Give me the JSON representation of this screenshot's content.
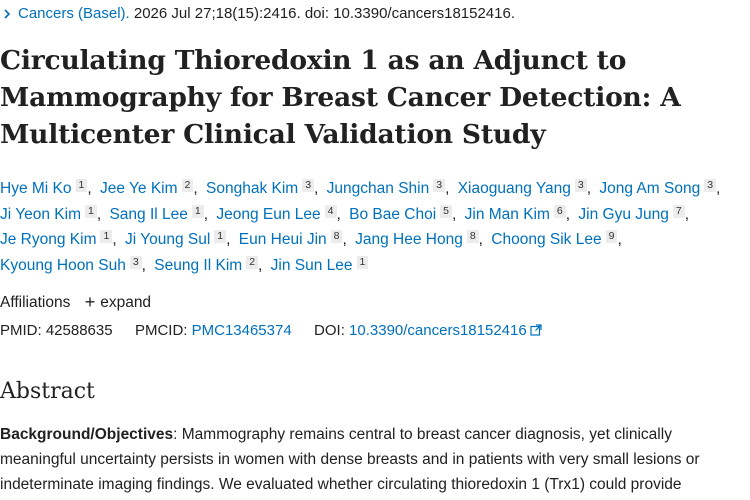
{
  "citation": {
    "journal": "Cancers (Basel).",
    "details": "2026 Jul 27;18(15):2416. doi: 10.3390/cancers18152416."
  },
  "title": "Circulating Thioredoxin 1 as an Adjunct to Mammography for Breast Cancer Detection: A Multicenter Clinical Validation Study",
  "authors": [
    {
      "name": "Hye Mi Ko",
      "aff": "1"
    },
    {
      "name": "Jee Ye Kim",
      "aff": "2"
    },
    {
      "name": "Songhak Kim",
      "aff": "3"
    },
    {
      "name": "Jungchan Shin",
      "aff": "3"
    },
    {
      "name": "Xiaoguang Yang",
      "aff": "3"
    },
    {
      "name": "Jong Am Song",
      "aff": "3"
    },
    {
      "name": "Ji Yeon Kim",
      "aff": "1"
    },
    {
      "name": "Sang Il Lee",
      "aff": "1"
    },
    {
      "name": "Jeong Eun Lee",
      "aff": "4"
    },
    {
      "name": "Bo Bae Choi",
      "aff": "5"
    },
    {
      "name": "Jin Man Kim",
      "aff": "6"
    },
    {
      "name": "Jin Gyu Jung",
      "aff": "7"
    },
    {
      "name": "Je Ryong Kim",
      "aff": "1"
    },
    {
      "name": "Ji Young Sul",
      "aff": "1"
    },
    {
      "name": "Eun Heui Jin",
      "aff": "8"
    },
    {
      "name": "Jang Hee Hong",
      "aff": "8"
    },
    {
      "name": "Choong Sik Lee",
      "aff": "9"
    },
    {
      "name": "Kyoung Hoon Suh",
      "aff": "3"
    },
    {
      "name": "Seung Il Kim",
      "aff": "2"
    },
    {
      "name": "Jin Sun Lee",
      "aff": "1"
    }
  ],
  "affiliations": {
    "label": "Affiliations",
    "expand_symbol": "+",
    "expand_label": "expand"
  },
  "identifiers": {
    "pmid_label": "PMID:",
    "pmid": "42588635",
    "pmcid_label": "PMCID:",
    "pmcid": "PMC13465374",
    "doi_label": "DOI:",
    "doi": "10.3390/cancers18152416"
  },
  "abstract": {
    "heading": "Abstract",
    "lead_label": "Background/Objectives",
    "lead_punct": ":",
    "text": " Mammography remains central to breast cancer diagnosis, yet clinically meaningful uncertainty persists in women with dense breasts and in patients with very small lesions or indeterminate imaging findings. We evaluated whether circulating thioredoxin 1 (Trx1) could provide"
  },
  "colors": {
    "link": "#0071bc",
    "text": "#212121",
    "sup_bg": "#ececec"
  },
  "icons": {
    "breadcrumb": "chevron-right-icon",
    "external": "external-link-icon"
  }
}
